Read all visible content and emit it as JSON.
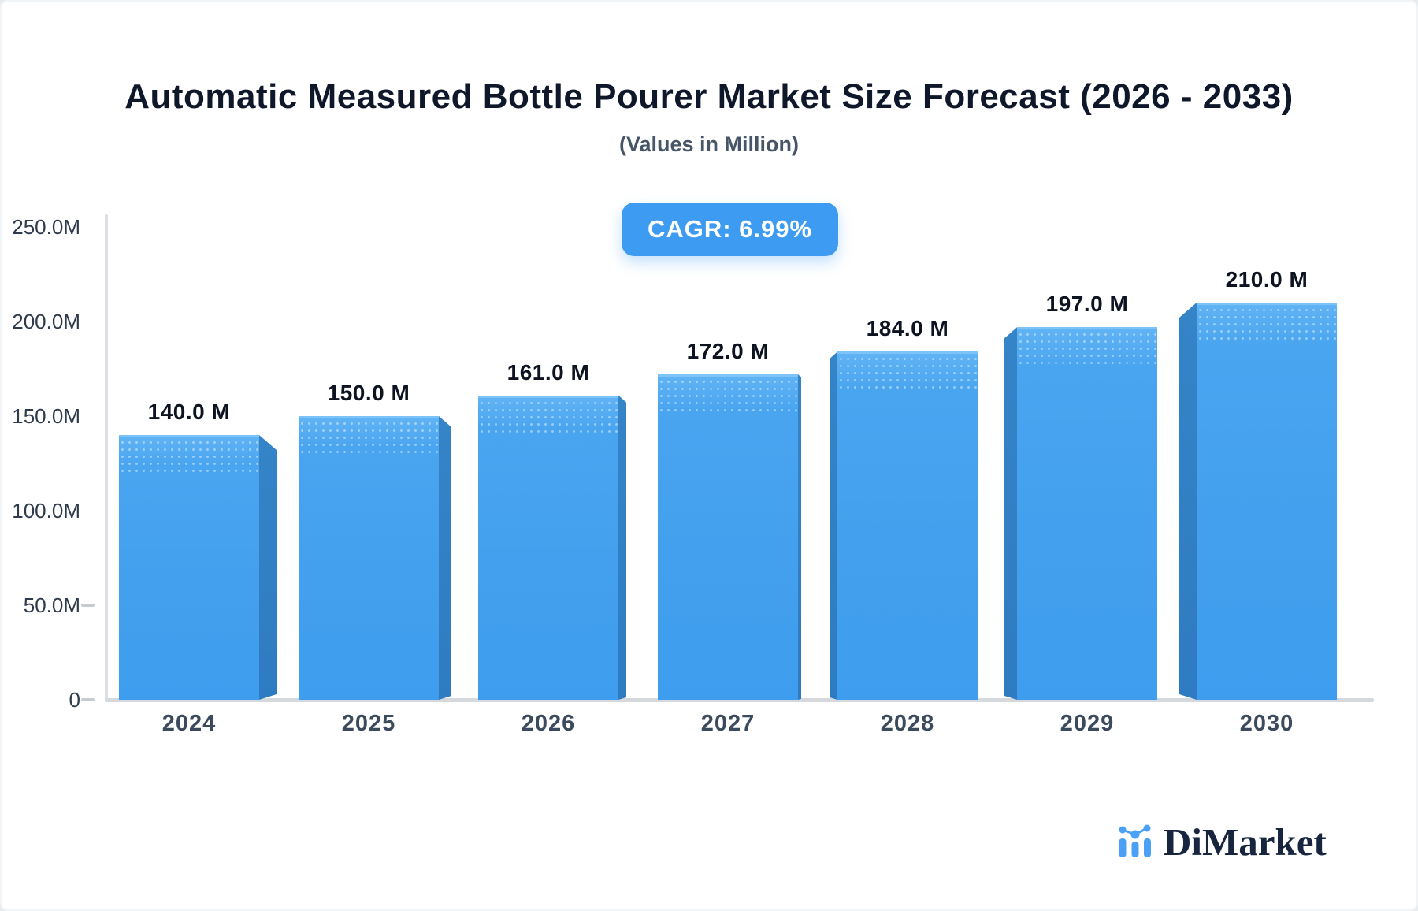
{
  "header": {
    "title": "Automatic Measured Bottle Pourer Market Size Forecast (2026 - 2033)",
    "subtitle": "(Values in Million)",
    "cagr_label": "CAGR: 6.99%"
  },
  "logo": {
    "text": "DiMarket"
  },
  "colors": {
    "bar_face": "#42a0ee",
    "bar_face_light": "#60b3f4",
    "bar_side": "#2e7bc1",
    "badge_bg": "#3d9cf2",
    "axis_line": "#d5d9dd",
    "title_text": "#0f172a",
    "subtitle_text": "#475569",
    "year_label_text": "#3c4a5d",
    "value_label_text": "#0d1321",
    "logo_text": "#18253f",
    "logo_icon": "#4aa0f5"
  },
  "chart_data": {
    "type": "bar",
    "title": "Automatic Measured Bottle Pourer Market Size Forecast (2026 - 2033)",
    "subtitle": "(Values in Million)",
    "annotation": "CAGR: 6.99%",
    "categories": [
      "2024",
      "2025",
      "2026",
      "2027",
      "2028",
      "2029",
      "2030"
    ],
    "values": [
      140.0,
      150.0,
      161.0,
      172.0,
      184.0,
      197.0,
      210.0
    ],
    "value_labels": [
      "140.0 M",
      "150.0 M",
      "161.0 M",
      "172.0 M",
      "184.0 M",
      "197.0 M",
      "210.0 M"
    ],
    "unit": "Million",
    "xlabel": "",
    "ylabel": "",
    "ylim": [
      0,
      250
    ],
    "y_ticks": [
      {
        "label": "250.0M",
        "value": 250,
        "dash": false
      },
      {
        "label": "200.0M",
        "value": 200,
        "dash": false
      },
      {
        "label": "150.0M",
        "value": 150,
        "dash": false
      },
      {
        "label": "100.0M",
        "value": 100,
        "dash": false
      },
      {
        "label": "50.0M",
        "value": 50,
        "dash": true
      },
      {
        "label": "0",
        "value": 0,
        "dash": true
      }
    ],
    "grid": false,
    "legend": "none",
    "style": "3d-perspective-bars"
  }
}
